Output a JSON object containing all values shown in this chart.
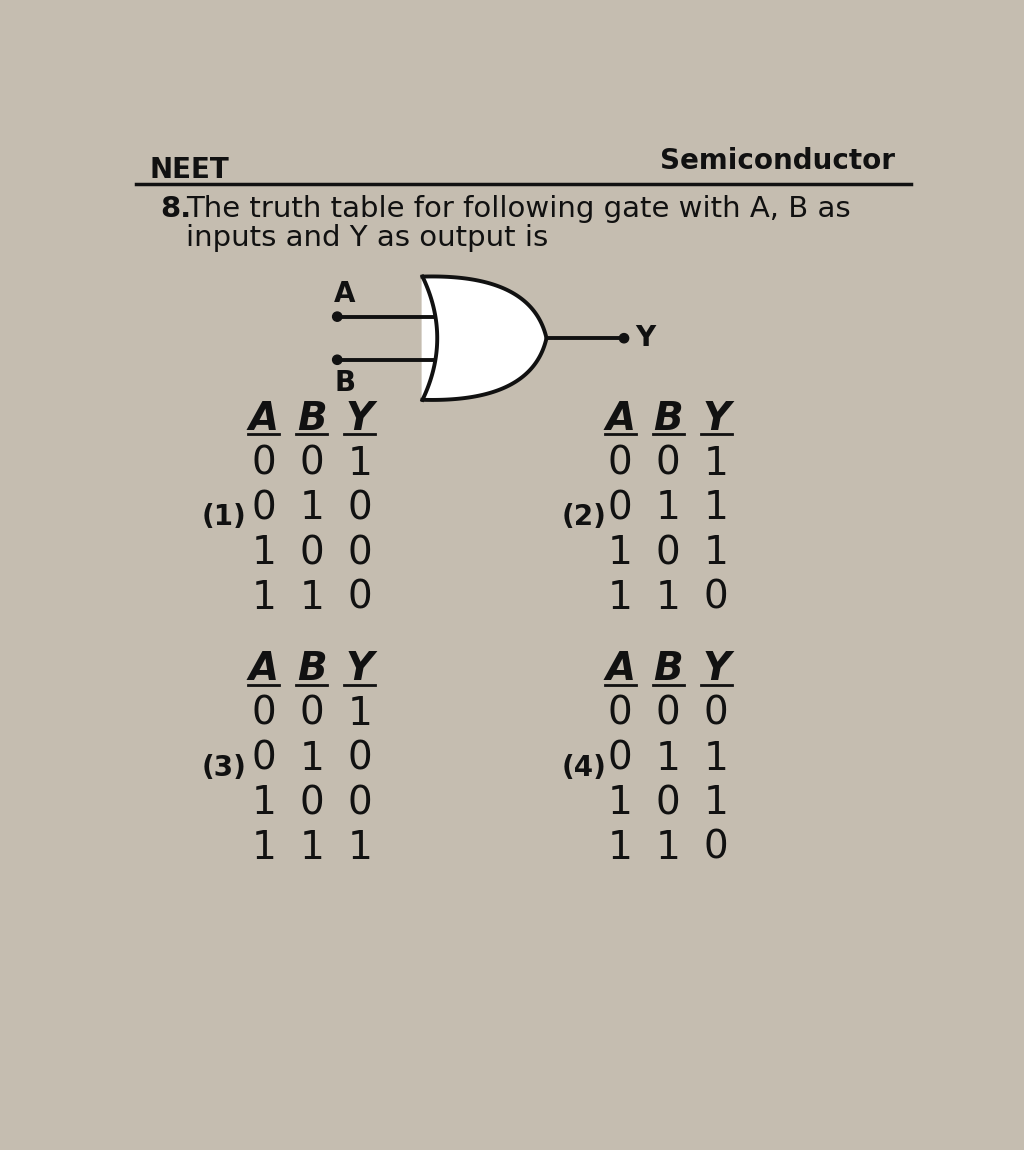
{
  "bg_color": "#c5bdb0",
  "title_right": "Semiconductor",
  "title_left": "NEET",
  "question_num": "8.",
  "gate_label_A": "A",
  "gate_label_B": "B",
  "gate_label_Y": "Y",
  "options": [
    {
      "num": "(1)",
      "headers": [
        "A",
        "B",
        "Y"
      ],
      "rows": [
        [
          0,
          0,
          1
        ],
        [
          0,
          1,
          0
        ],
        [
          1,
          0,
          0
        ],
        [
          1,
          1,
          0
        ]
      ]
    },
    {
      "num": "(2)",
      "headers": [
        "A",
        "B",
        "Y"
      ],
      "rows": [
        [
          0,
          0,
          1
        ],
        [
          0,
          1,
          1
        ],
        [
          1,
          0,
          1
        ],
        [
          1,
          1,
          0
        ]
      ]
    },
    {
      "num": "(3)",
      "headers": [
        "A",
        "B",
        "Y"
      ],
      "rows": [
        [
          0,
          0,
          1
        ],
        [
          0,
          1,
          0
        ],
        [
          1,
          0,
          0
        ],
        [
          1,
          1,
          1
        ]
      ]
    },
    {
      "num": "(4)",
      "headers": [
        "A",
        "B",
        "Y"
      ],
      "rows": [
        [
          0,
          0,
          0
        ],
        [
          0,
          1,
          1
        ],
        [
          1,
          0,
          1
        ],
        [
          1,
          1,
          0
        ]
      ]
    }
  ],
  "text_color": "#111111",
  "line_color": "#111111",
  "font_size_title": 20,
  "font_size_question": 21,
  "font_size_table": 28,
  "font_size_gate": 20,
  "font_size_option": 20
}
